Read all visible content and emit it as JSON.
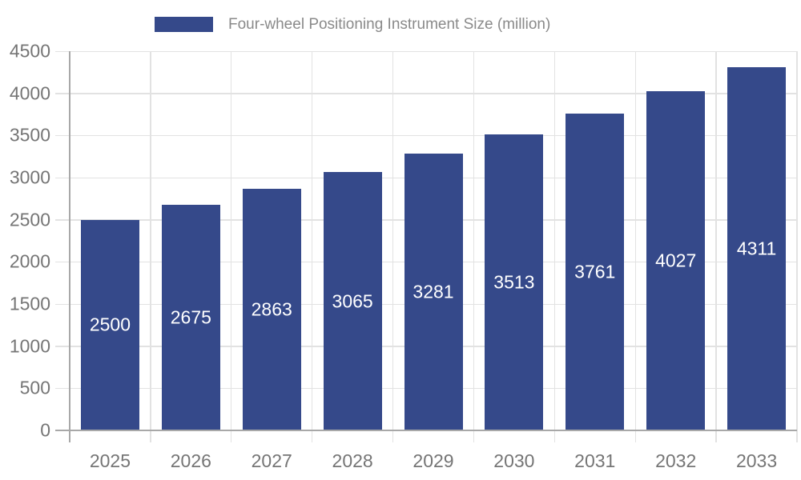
{
  "legend": {
    "label": "Four-wheel Positioning Instrument Size (million)",
    "swatch_color": "#35498a"
  },
  "chart_data": {
    "type": "bar",
    "title": "Four-wheel Positioning Instrument Size (million)",
    "series_name": "Four-wheel Positioning Instrument Size (million)",
    "categories": [
      "2025",
      "2026",
      "2027",
      "2028",
      "2029",
      "2030",
      "2031",
      "2032",
      "2033"
    ],
    "values": [
      2500,
      2675,
      2863,
      3065,
      3281,
      3513,
      3761,
      4027,
      4311
    ],
    "xlabel": "",
    "ylabel": "",
    "ylim": [
      0,
      4500
    ],
    "ytick_interval": 500,
    "yticks": [
      0,
      500,
      1000,
      1500,
      2000,
      2500,
      3000,
      3500,
      4000,
      4500
    ],
    "grid": true,
    "grid_vertical": true,
    "legend_position": "top",
    "value_labels": "inside-center",
    "colors": {
      "bar": "#35498a",
      "value_label": "#ffffff",
      "axis_label": "#757575",
      "title_text": "#8a8a8a",
      "gridline": "#e2e2e2",
      "axis_line": "#a8a8a8",
      "background": "#ffffff"
    }
  }
}
